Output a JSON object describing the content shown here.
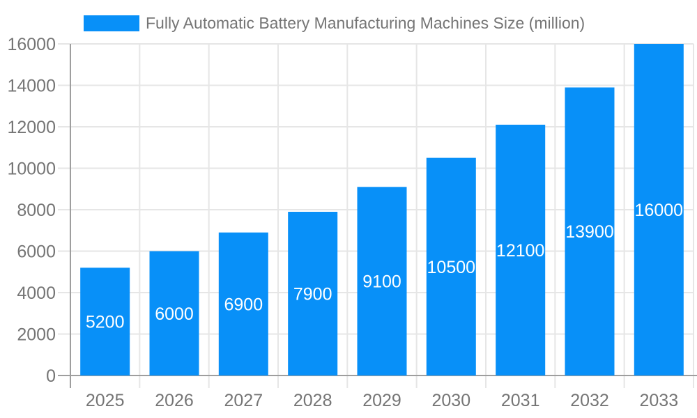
{
  "legend": {
    "label": "Fully Automatic Battery Manufacturing Machines Size (million)"
  },
  "chart_data": {
    "type": "bar",
    "title": "Fully Automatic Battery Manufacturing Machines Size (million)",
    "categories": [
      "2025",
      "2026",
      "2027",
      "2028",
      "2029",
      "2030",
      "2031",
      "2032",
      "2033"
    ],
    "values": [
      5200,
      6000,
      6900,
      7900,
      9100,
      10500,
      12100,
      13900,
      16000
    ],
    "xlabel": "",
    "ylabel": "",
    "ylim": [
      0,
      16000
    ],
    "ytick_step": 2000,
    "grid": true,
    "legend_position": "top-left",
    "bar_color": "#0890f8",
    "value_label_color": "#ffffff",
    "grid_color": "#e6e6e6",
    "axis_color": "#9e9e9e",
    "tick_label_color": "#757575"
  }
}
